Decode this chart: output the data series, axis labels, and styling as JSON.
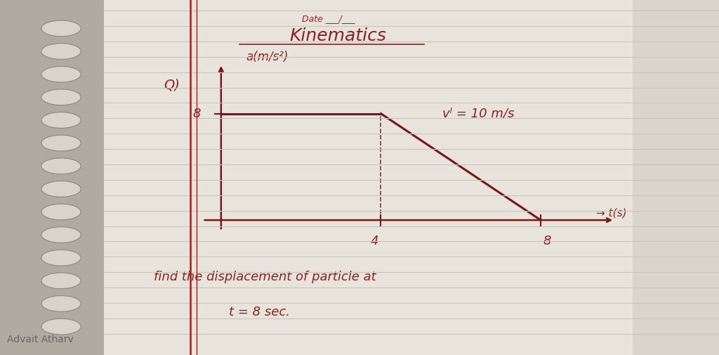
{
  "title": "Kinematics",
  "question_label": "Q)",
  "ylabel": "a(m/s²)",
  "xlabel": "→ t(s)",
  "vi_label": "vᴵ = 10 m/s",
  "find_line1": "find the displacement of particle at",
  "find_line2": "        t = 8 sec.",
  "author": "Advait Atharv",
  "line_color": "#8B1A1A",
  "bg_color_paper": "#e8e4dc",
  "bg_color_binding": "#c8c4bc",
  "bg_color_dark": "#b0aba0",
  "text_color": "#8B2020",
  "ruled_color": "#c8c4be",
  "margin_color": "#9B2020",
  "date_color": "#9B2020",
  "graph_axis_color": "#7B1515"
}
